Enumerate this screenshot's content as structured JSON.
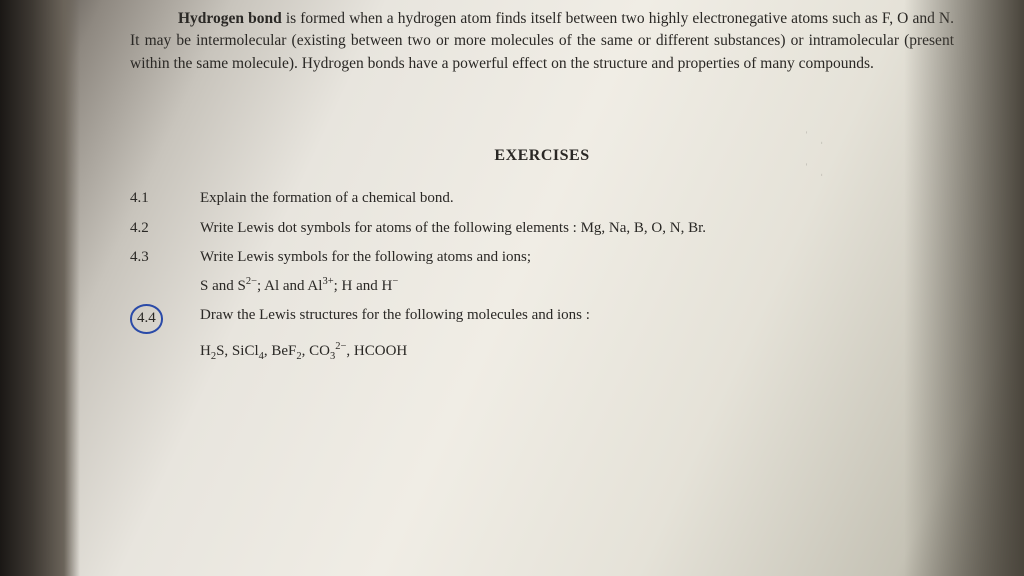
{
  "colors": {
    "text": "#2a2825",
    "circle": "#2a4aa8",
    "page_light": "#f0ede5",
    "page_mid": "#e8e5de",
    "page_dark": "#888478",
    "binding": "#1a1715"
  },
  "typography": {
    "body_font": "Georgia, Times New Roman, serif",
    "body_size_pt": 11.5,
    "heading_size_pt": 12,
    "heading_weight": "bold"
  },
  "intro": {
    "bold_lead": "Hydrogen bond",
    "text": " is formed when a hydrogen atom finds itself between two highly electronegative atoms such as F, O and N. It may be intermolecular (existing between two or more molecules of the same or different substances) or intramolecular (present within the same molecule). Hydrogen bonds have a powerful effect on the structure and properties of many compounds."
  },
  "section_heading": "EXERCISES",
  "exercises": [
    {
      "num": "4.1",
      "text": "Explain the formation of a chemical bond."
    },
    {
      "num": "4.2",
      "text": "Write Lewis dot symbols for atoms of the following elements : Mg, Na, B, O, N, Br."
    },
    {
      "num": "4.3",
      "text": "Write Lewis symbols for the following atoms and ions;"
    },
    {
      "num": "4.4",
      "text": "Draw the Lewis structures for the following molecules and ions :",
      "circled": true
    }
  ],
  "sub_4_3": {
    "plain": "S and S",
    "sup1": "2−",
    "mid1": "; Al and Al",
    "sup2": "3+",
    "mid2": "; H and H",
    "sup3": "−"
  },
  "sub_4_4": {
    "p1": "H",
    "s1": "2",
    "p2": "S, SiCl",
    "s2": "4",
    "p3": ", BeF",
    "s3": "2",
    "p4": ", CO",
    "s4": "3",
    "sup4": "2−",
    "p5": ", HCOOH"
  }
}
